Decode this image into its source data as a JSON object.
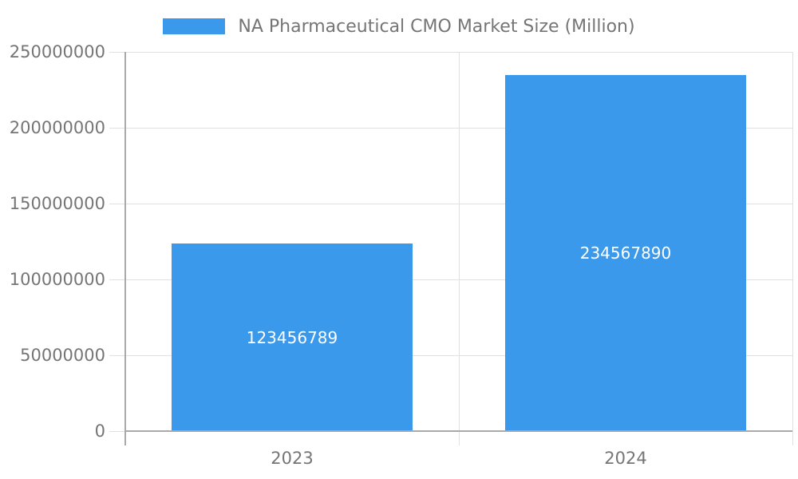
{
  "chart_data": {
    "type": "bar",
    "title": "NA Pharmaceutical CMO Market Size (Million)",
    "categories": [
      "2023",
      "2024"
    ],
    "series": [
      {
        "name": "NA Pharmaceutical CMO Market Size (Million)",
        "values": [
          123456789,
          234567890
        ]
      }
    ],
    "bar_value_labels": [
      "123456789",
      "234567890"
    ],
    "xlabel": "",
    "ylabel": "",
    "ylim": [
      0,
      250000000
    ],
    "yticks": [
      0,
      50000000,
      100000000,
      150000000,
      200000000,
      250000000
    ],
    "ytick_labels": [
      "0",
      "50000000",
      "100000000",
      "150000000",
      "200000000",
      "250000000"
    ],
    "grid": true,
    "legend_position": "top-center",
    "colors": {
      "bar": "#3B99EC",
      "grid": "#E0E0E0",
      "axis": "#A9A9A9",
      "tick_text": "#757575",
      "legend_text": "#757575",
      "bar_label_text": "#FFFFFF",
      "background": "#FFFFFF"
    }
  }
}
